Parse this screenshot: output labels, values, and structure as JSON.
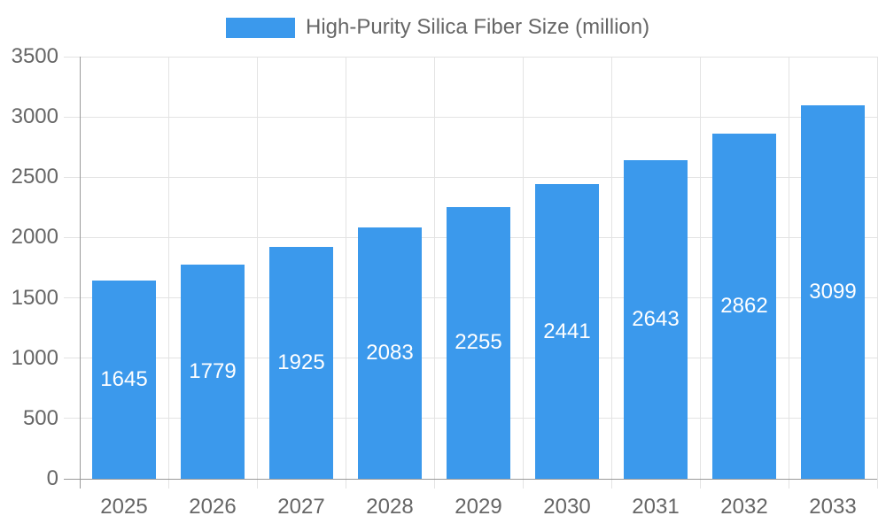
{
  "legend": {
    "label": "High-Purity Silica Fiber Size (million)"
  },
  "chart_data": {
    "type": "bar",
    "title": "High-Purity Silica Fiber Size (million)",
    "series_name": "High-Purity Silica Fiber Size (million)",
    "categories": [
      "2025",
      "2026",
      "2027",
      "2028",
      "2029",
      "2030",
      "2031",
      "2032",
      "2033"
    ],
    "values": [
      1645,
      1779,
      1925,
      2083,
      2255,
      2441,
      2643,
      2862,
      3099
    ],
    "xlabel": "",
    "ylabel": "",
    "ylim": [
      0,
      3500
    ],
    "ytick_step": 500,
    "grid": true,
    "legend_position": "top-center",
    "data_labels": "inside-middle-white",
    "colors": {
      "bar": "#3B99EC",
      "grid": "#E3E3E3",
      "axis": "#9A9A9A",
      "text": "#666666",
      "bar_label": "#FFFFFF"
    }
  }
}
